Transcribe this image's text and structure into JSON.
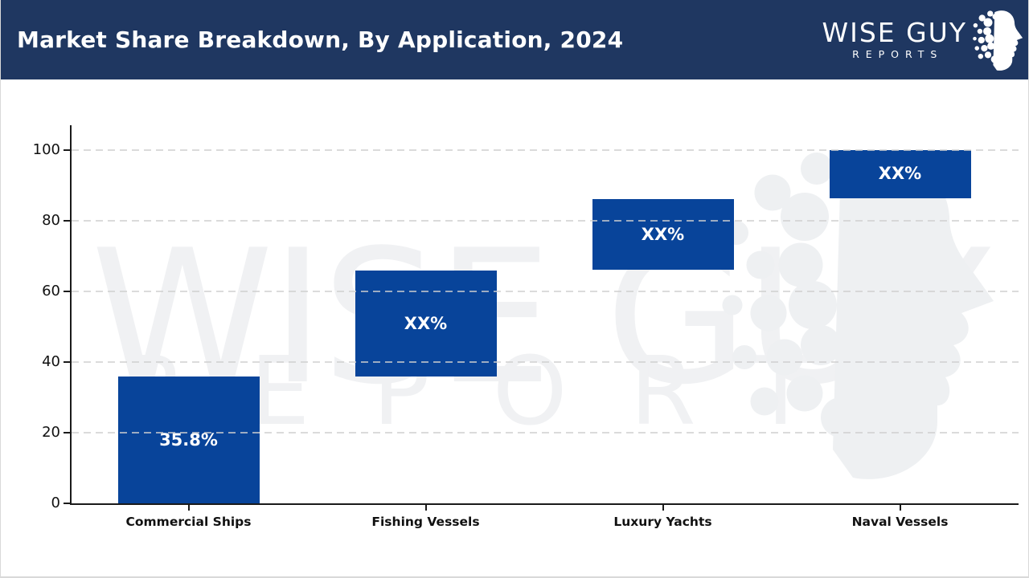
{
  "header": {
    "title": "Market Share Breakdown, By Application, 2024",
    "bg_color": "#1f3761",
    "logo": {
      "line1": "WISE GUY",
      "line2": "REPORTS"
    }
  },
  "watermark": {
    "line1": "WISE GUY",
    "line2": "REPORTS"
  },
  "chart_data": {
    "type": "bar",
    "variant": "floating-waterfall",
    "title": "Market Share Breakdown, By Application, 2024",
    "categories": [
      "Commercial Ships",
      "Fishing Vessels",
      "Luxury Yachts",
      "Naval Vessels"
    ],
    "series": [
      {
        "name": "Commercial Ships",
        "start": 0,
        "end": 35.8,
        "label": "35.8%"
      },
      {
        "name": "Fishing Vessels",
        "start": 35.9,
        "end": 65.9,
        "label": "XX%"
      },
      {
        "name": "Luxury Yachts",
        "start": 66.1,
        "end": 86.1,
        "label": "XX%"
      },
      {
        "name": "Naval Vessels",
        "start": 86.4,
        "end": 100,
        "label": "XX%"
      }
    ],
    "xlabel": "",
    "ylabel": "",
    "yticks": [
      0,
      20,
      40,
      60,
      80,
      100
    ],
    "ylim": [
      0,
      106
    ],
    "grid": "horizontal-dashed",
    "legend": "none",
    "bar_color": "#08449a",
    "bar_label_color": "#ffffff",
    "axis_color": "#1a1a1a",
    "gridline_color": "#cfcfcf"
  }
}
